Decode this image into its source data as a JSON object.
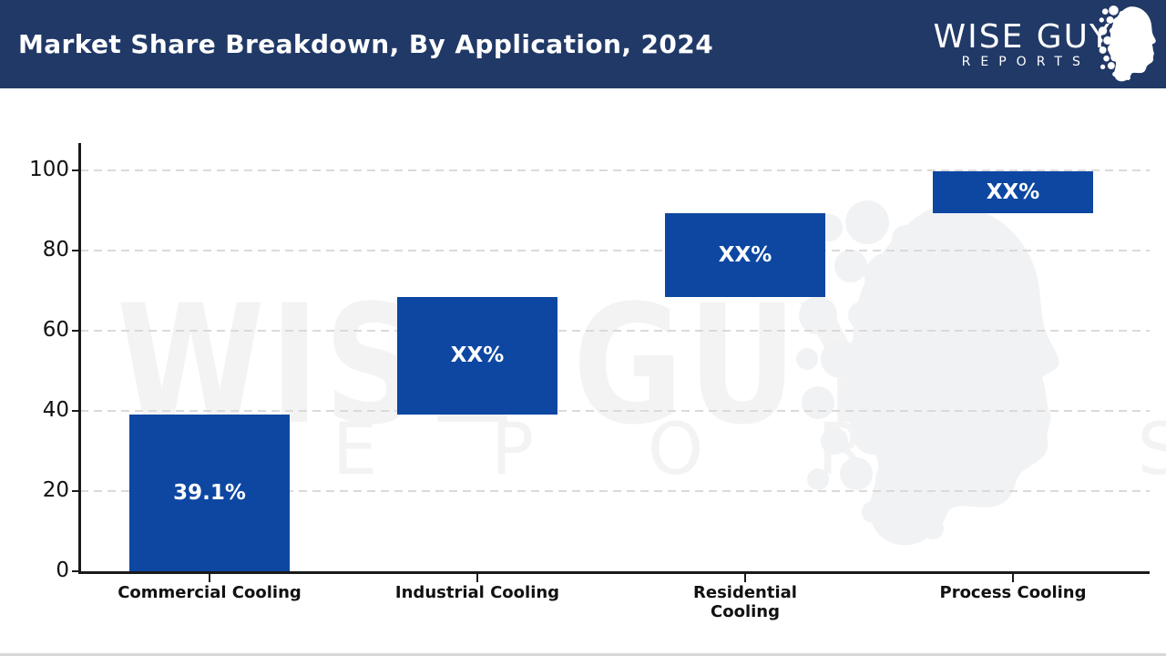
{
  "header": {
    "title": "Market Share Breakdown, By Application, 2024",
    "logo": {
      "line1": "WISE GUY",
      "line2": "REPORTS"
    },
    "bg_color": "#213966"
  },
  "watermark": {
    "line1": "WISE GUY",
    "line2": "REPORTS"
  },
  "chart_data": {
    "type": "bar",
    "subtype": "waterfall",
    "title": "Market Share Breakdown, By Application, 2024",
    "categories": [
      "Commercial Cooling",
      "Industrial Cooling",
      "Residential\nCooling",
      "Process Cooling"
    ],
    "series": [
      {
        "name": "Market Share",
        "segments": [
          {
            "category": "Commercial Cooling",
            "start": 0,
            "end": 39.1,
            "label": "39.1%"
          },
          {
            "category": "Industrial Cooling",
            "start": 39.1,
            "end": 68.4,
            "label": "XX%"
          },
          {
            "category": "Residential Cooling",
            "start": 68.4,
            "end": 89.3,
            "label": "XX%"
          },
          {
            "category": "Process Cooling",
            "start": 89.3,
            "end": 99.8,
            "label": "XX%"
          }
        ]
      }
    ],
    "xlabel": "",
    "ylabel": "",
    "ylim": [
      0,
      100
    ],
    "yticks": [
      0,
      20,
      40,
      60,
      80,
      100
    ],
    "grid": "horizontal-dashed",
    "legend": "none",
    "bar_color": "#0d47a1",
    "bar_label_color": "#ffffff"
  }
}
